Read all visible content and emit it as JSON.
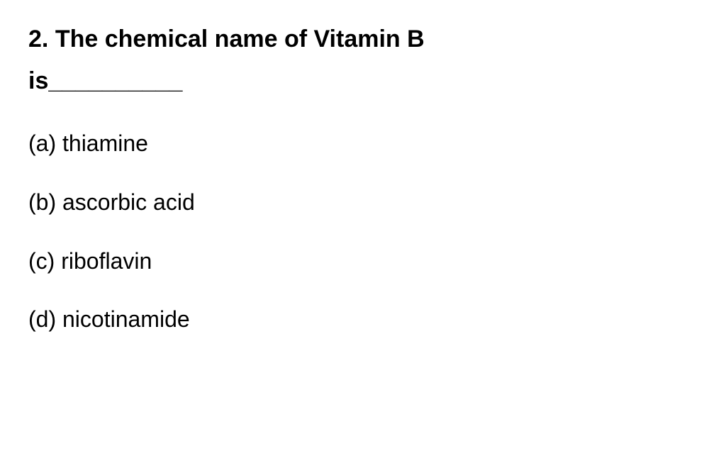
{
  "question": {
    "number": "2.",
    "text_line1": "The chemical name of Vitamin B",
    "text_line2_prefix": "is",
    "blank": "__________"
  },
  "options": [
    {
      "label": "(a)",
      "text": "thiamine"
    },
    {
      "label": "(b)",
      "text": "ascorbic acid"
    },
    {
      "label": "(c)",
      "text": "riboflavin"
    },
    {
      "label": "(d)",
      "text": "nicotinamide"
    }
  ],
  "styling": {
    "background_color": "#ffffff",
    "text_color": "#000000",
    "question_fontsize": 34,
    "question_fontweight": "bold",
    "option_fontsize": 32,
    "option_fontweight": "normal",
    "font_family": "Arial, Helvetica, sans-serif",
    "option_spacing": 38
  }
}
